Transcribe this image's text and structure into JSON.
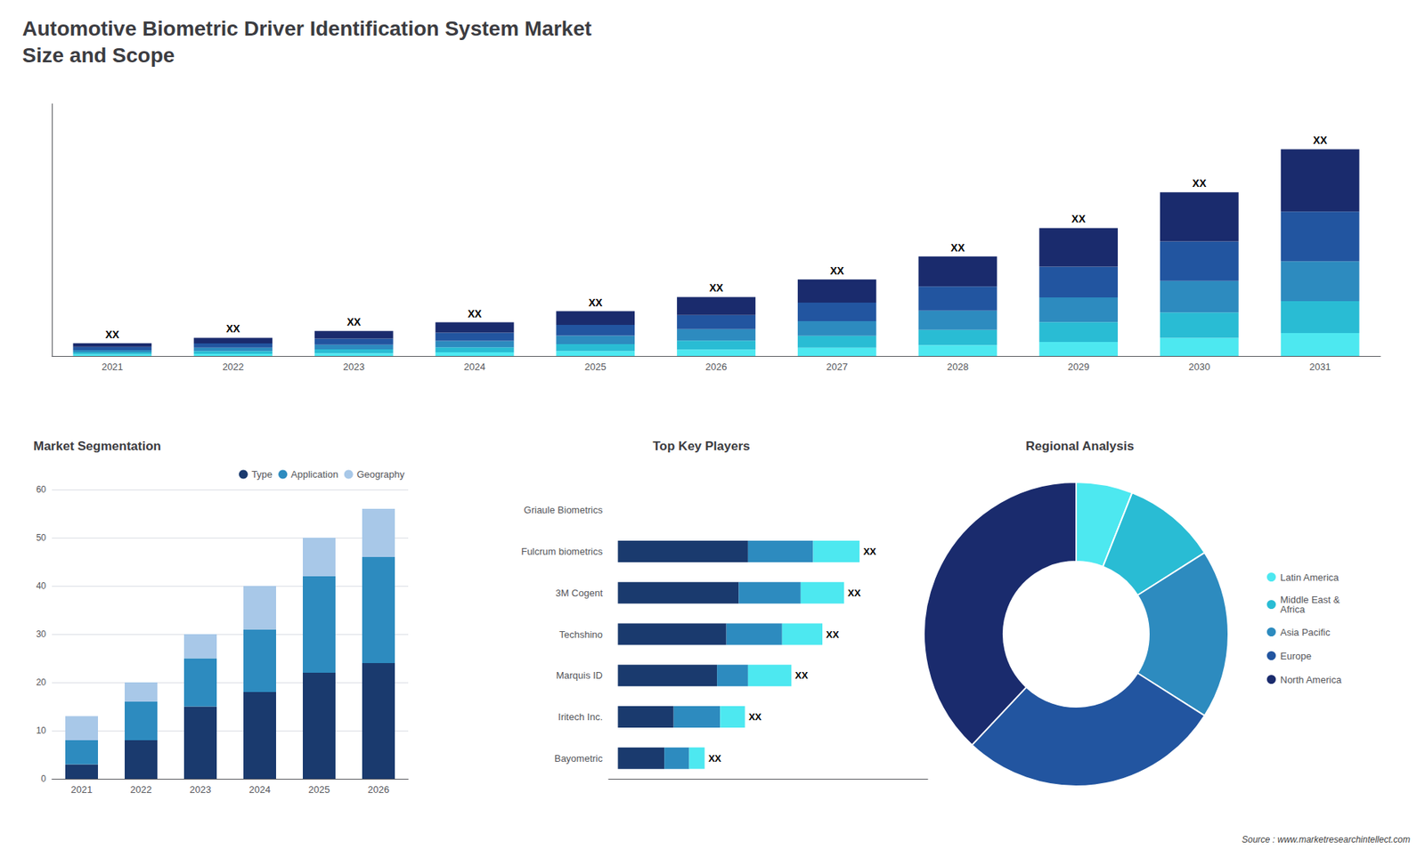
{
  "chart_data": [
    {
      "type": "bar",
      "title": "Automotive Biometric Driver Identification System Market\nSize and Scope",
      "stacked": true,
      "categories": [
        "2021",
        "2022",
        "2023",
        "2024",
        "2025",
        "2026",
        "2027",
        "2028",
        "2029",
        "2030",
        "2031"
      ],
      "series": [
        {
          "color": "#4de8f0",
          "values": [
            0.4,
            0.5,
            0.65,
            0.85,
            1.15,
            1.5,
            1.95,
            2.55,
            3.3,
            4.25,
            5.35
          ]
        },
        {
          "color": "#29bcd4",
          "values": [
            0.45,
            0.65,
            0.9,
            1.2,
            1.6,
            2.1,
            2.75,
            3.55,
            4.6,
            5.9,
            7.45
          ]
        },
        {
          "color": "#2d8bbf",
          "values": [
            0.55,
            0.8,
            1.1,
            1.5,
            2.0,
            2.65,
            3.45,
            4.5,
            5.75,
            7.35,
            9.3
          ]
        },
        {
          "color": "#2255a0",
          "values": [
            0.7,
            1.0,
            1.4,
            1.9,
            2.5,
            3.3,
            4.3,
            5.6,
            7.2,
            9.2,
            11.6
          ]
        },
        {
          "color": "#1a2b6d",
          "values": [
            0.9,
            1.3,
            1.8,
            2.4,
            3.2,
            4.2,
            5.4,
            7.0,
            9.0,
            11.5,
            14.5
          ]
        }
      ],
      "annotations": [
        "XX",
        "XX",
        "XX",
        "XX",
        "XX",
        "XX",
        "XX",
        "XX",
        "XX",
        "XX",
        "XX"
      ],
      "ylim": [
        0,
        58.804
      ],
      "grid": false,
      "tick_labels": "x"
    },
    {
      "type": "bar",
      "title": "Market Segmentation",
      "stacked": true,
      "categories": [
        "2021",
        "2022",
        "2023",
        "2024",
        "2025",
        "2026"
      ],
      "series": [
        {
          "name": "Type",
          "color": "#1a3a6e",
          "values": [
            3,
            8,
            15,
            18,
            22,
            24
          ]
        },
        {
          "name": "Application",
          "color": "#2d8bbf",
          "values": [
            5,
            8,
            10,
            13,
            20,
            22
          ]
        },
        {
          "name": "Geography",
          "color": "#a8c8e8",
          "values": [
            5,
            4,
            5,
            9,
            8,
            10
          ]
        }
      ],
      "ylim": [
        0,
        60
      ],
      "yticks": [
        0,
        10,
        20,
        30,
        40,
        50,
        60
      ],
      "grid": true,
      "legend": "upper right"
    },
    {
      "type": "bar",
      "orientation": "horizontal",
      "title": "Top Key Players",
      "stacked": true,
      "categories": [
        "Griaule Biometrics",
        "Fulcrum biometrics",
        "3M Cogent",
        "Techshino",
        "Marquis ID",
        "Iritech Inc.",
        "Bayometric"
      ],
      "series": [
        {
          "color": "#1a3a6e",
          "values": [
            0,
            4.2,
            3.9,
            3.5,
            3.2,
            1.8,
            1.5
          ]
        },
        {
          "color": "#2d8bbf",
          "values": [
            0,
            2.1,
            2.0,
            1.8,
            1.0,
            1.5,
            0.8
          ]
        },
        {
          "color": "#4de8f0",
          "values": [
            0,
            1.5,
            1.4,
            1.3,
            1.4,
            0.8,
            0.5
          ]
        }
      ],
      "annotations": [
        null,
        "XX",
        "XX",
        "XX",
        "XX",
        "XX",
        "XX"
      ],
      "xlim": [
        -0.3,
        10
      ],
      "grid": false,
      "tick_labels": "y"
    },
    {
      "type": "pie",
      "title": "Regional Analysis",
      "categories": [
        "Latin America",
        "Middle East &\nAfrica",
        "Asia Pacific",
        "Europe",
        "North America"
      ],
      "values": [
        6,
        10,
        18,
        28,
        38
      ],
      "colors": [
        "#4de8f0",
        "#29bcd4",
        "#2d8bbf",
        "#2255a0",
        "#1a2b6d"
      ],
      "legend": "right",
      "annotations": [
        "Source : www.marketresearchintellect.com"
      ]
    }
  ]
}
